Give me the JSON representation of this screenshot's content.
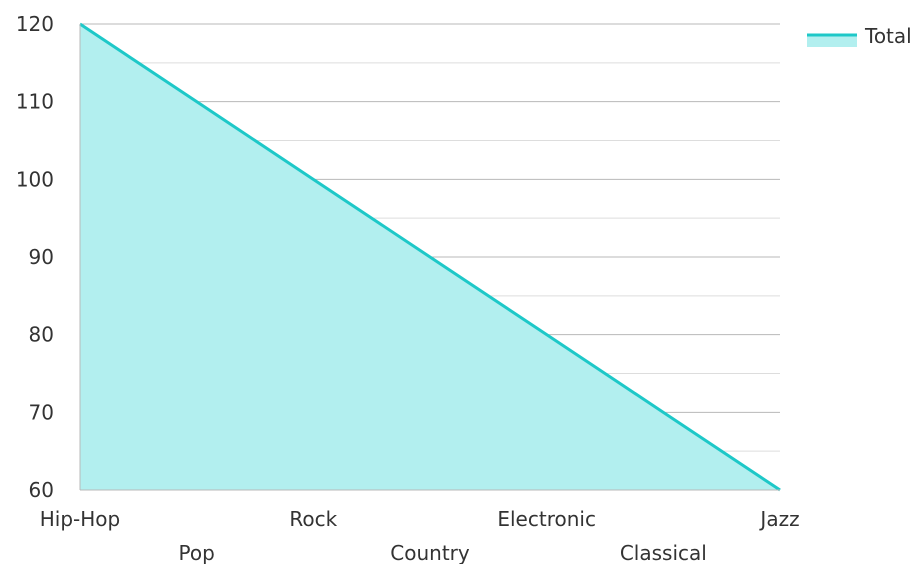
{
  "chart_data": {
    "type": "area",
    "categories": [
      "Hip-Hop",
      "Pop",
      "Rock",
      "Country",
      "Electronic",
      "Classical",
      "Jazz"
    ],
    "series": [
      {
        "name": "Total",
        "values": [
          120,
          110,
          100,
          90,
          80,
          70,
          60
        ]
      }
    ],
    "ylim": [
      60,
      120
    ],
    "yticks": [
      60,
      70,
      80,
      90,
      100,
      110,
      120
    ],
    "grid": true,
    "legend_position": "top-right",
    "title": "",
    "xlabel": "",
    "ylabel": ""
  },
  "colors": {
    "line": "#1ec8c8",
    "fill": "#b2efef",
    "grid_major": "#b8b8b8",
    "grid_minor": "#dddddd",
    "text": "#333333"
  }
}
